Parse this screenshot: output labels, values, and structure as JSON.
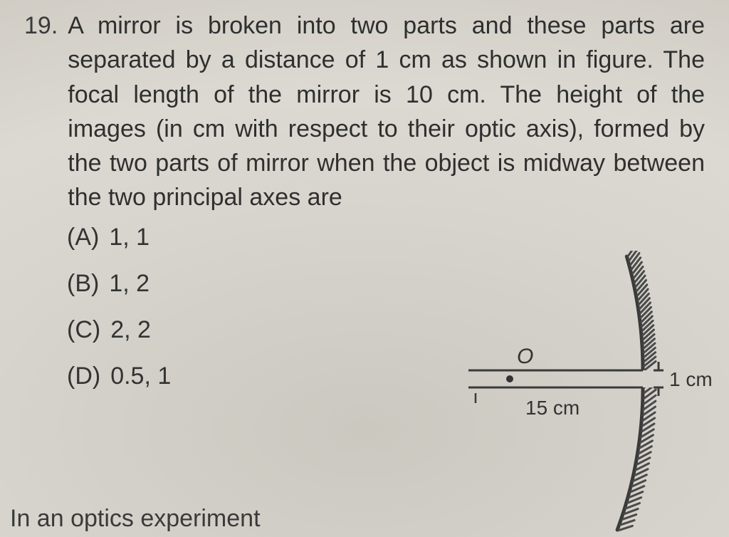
{
  "question": {
    "number": "19.",
    "text": "A mirror is broken into two parts and these parts are separated by a distance of 1 cm as shown in figure. The focal length of the mirror is 10 cm. The height of the images (in cm with respect to their optic axis), formed by the two parts of mirror when the object is midway between the two principal axes are"
  },
  "options": {
    "a": {
      "label": "(A)",
      "text": "1, 1"
    },
    "b": {
      "label": "(B)",
      "text": "1, 2"
    },
    "c": {
      "label": "(C)",
      "text": "2, 2"
    },
    "d": {
      "label": "(D)",
      "text": "0.5, 1"
    }
  },
  "figure": {
    "o_label": "O",
    "gap_label": "1 cm",
    "axis_label": "15 cm",
    "stroke": "#3a3a3a",
    "hatch": "#4a4a4a"
  },
  "tail": "In an optics experiment"
}
